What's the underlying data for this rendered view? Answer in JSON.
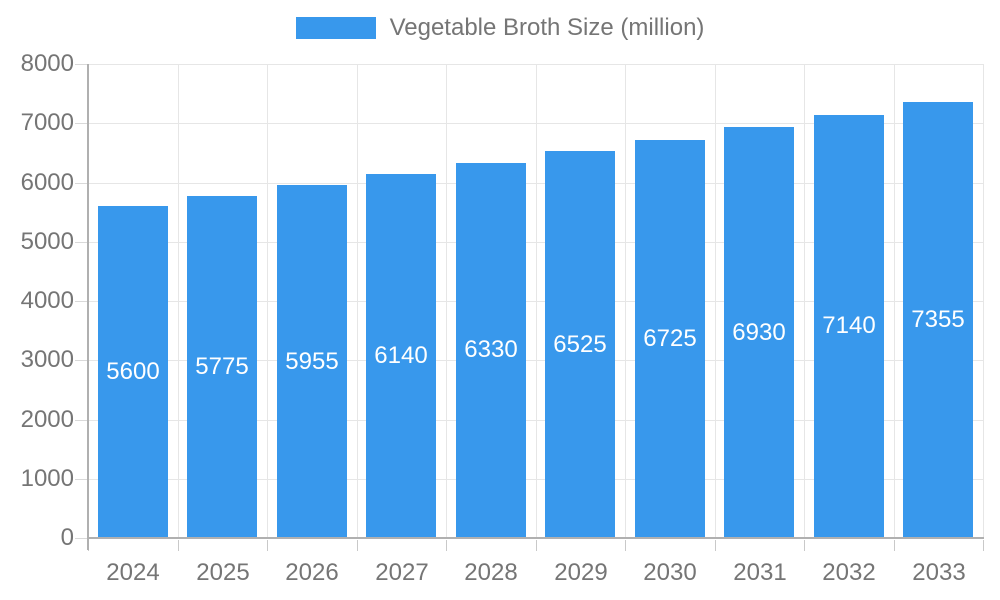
{
  "legend": {
    "label": "Vegetable Broth Size (million)",
    "swatch_color": "#3898ec"
  },
  "chart_data": {
    "type": "bar",
    "title": "Vegetable Broth Size (million)",
    "categories": [
      "2024",
      "2025",
      "2026",
      "2027",
      "2028",
      "2029",
      "2030",
      "2031",
      "2032",
      "2033"
    ],
    "series": [
      {
        "name": "Vegetable Broth Size (million)",
        "values": [
          5600,
          5775,
          5955,
          6140,
          6330,
          6525,
          6725,
          6930,
          7140,
          7355
        ]
      }
    ],
    "bar_value_labels": [
      "5600",
      "5775",
      "5955",
      "6140",
      "6330",
      "6525",
      "6725",
      "6930",
      "7140",
      "7355"
    ],
    "xlabel": "",
    "ylabel": "",
    "ylim": [
      0,
      8000
    ],
    "ytick_interval": 1000,
    "ytick_labels": [
      "0",
      "1000",
      "2000",
      "3000",
      "4000",
      "5000",
      "6000",
      "7000",
      "8000"
    ],
    "grid": true,
    "legend_position": "top-center",
    "colors": {
      "bar": "#3898ec",
      "bar_label": "#ffffff",
      "axis_text": "#757575",
      "grid": "#e6e6e6",
      "axis_line": "#b0b0b0",
      "tick": "#c9c9c9"
    }
  }
}
